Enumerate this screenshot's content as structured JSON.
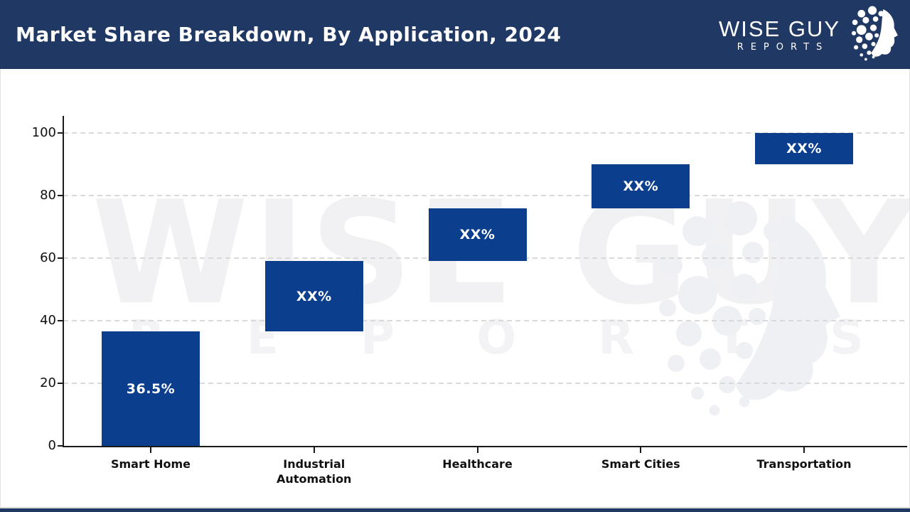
{
  "header": {
    "title": "Market Share Breakdown, By Application, 2024",
    "logo": {
      "line1": "WISE GUY",
      "line2": "REPORTS"
    }
  },
  "watermark": {
    "line1": "WISE GUY",
    "line2": "R E P O R T S"
  },
  "colors": {
    "header_bg": "#203864",
    "footer_bg": "#203864",
    "bar": "#0c3e8e",
    "bar_label": "#ffffff",
    "grid": "#d9d9d9",
    "axis": "#1a1a1a",
    "watermark": "#f1f1f4"
  },
  "chart_data": {
    "type": "bar",
    "subtype": "waterfall-floating-bars",
    "title": "Market Share Breakdown, By Application, 2024",
    "xlabel": "",
    "ylabel": "",
    "ylim": [
      0,
      100
    ],
    "yticks": [
      0,
      20,
      40,
      60,
      80,
      100
    ],
    "grid": "horizontal-dashed",
    "legend": "none",
    "categories": [
      "Smart Home",
      "Industrial Automation",
      "Healthcare",
      "Smart Cities",
      "Transportation"
    ],
    "values": [
      36.5,
      22.5,
      17,
      14,
      10
    ],
    "segments": [
      {
        "category": "Smart Home",
        "start": 0,
        "end": 36.5,
        "label": "36.5%"
      },
      {
        "category": "Industrial Automation",
        "start": 36.5,
        "end": 59,
        "label": "XX%"
      },
      {
        "category": "Healthcare",
        "start": 59,
        "end": 76,
        "label": "XX%"
      },
      {
        "category": "Smart Cities",
        "start": 76,
        "end": 90,
        "label": "XX%"
      },
      {
        "category": "Transportation",
        "start": 90,
        "end": 100,
        "label": "XX%"
      }
    ]
  }
}
